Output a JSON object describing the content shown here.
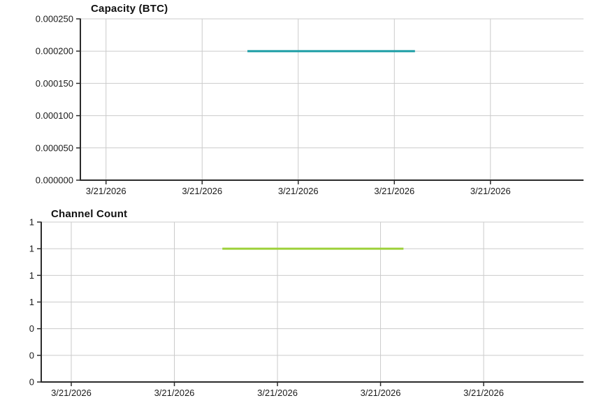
{
  "colors": {
    "background": "#ffffff",
    "grid": "#cbcbcb",
    "axis": "#2b2b2b",
    "text": "#1a1a1a",
    "capacity_line": "#1d9ea6",
    "channel_line": "#9dd13a"
  },
  "chart_data": [
    {
      "type": "line",
      "title": "Capacity (BTC)",
      "xlabel": "",
      "ylabel": "",
      "ylim": [
        0,
        0.00025
      ],
      "grid": true,
      "legend": false,
      "title_align": "left",
      "x_tick_labels": [
        "3/21/2026",
        "3/21/2026",
        "3/21/2026",
        "3/21/2026",
        "3/21/2026"
      ],
      "y_ticks": [
        0.00025,
        0.0002,
        0.00015,
        0.0001,
        5e-05,
        0
      ],
      "y_tick_labels": [
        "0.000250",
        "0.000200",
        "0.000150",
        "0.000100",
        "0.000050",
        "0.000000"
      ],
      "series": [
        {
          "name": "Capacity (BTC)",
          "color": "#1d9ea6",
          "value": 0.0002,
          "x_extent_frac": [
            0.332,
            0.665
          ]
        }
      ]
    },
    {
      "type": "line",
      "title": "Channel Count",
      "xlabel": "",
      "ylabel": "",
      "ylim": [
        0,
        1.2
      ],
      "grid": true,
      "legend": false,
      "title_align": "left",
      "x_tick_labels": [
        "3/21/2026",
        "3/21/2026",
        "3/21/2026",
        "3/21/2026",
        "3/21/2026"
      ],
      "y_ticks": [
        1.2,
        1.0,
        0.8,
        0.6,
        0.4,
        0.2,
        0
      ],
      "y_tick_labels": [
        "1",
        "1",
        "1",
        "1",
        "0",
        "0",
        "0"
      ],
      "series": [
        {
          "name": "Channel Count",
          "color": "#9dd13a",
          "value": 1,
          "x_extent_frac": [
            0.334,
            0.668
          ]
        }
      ]
    }
  ]
}
